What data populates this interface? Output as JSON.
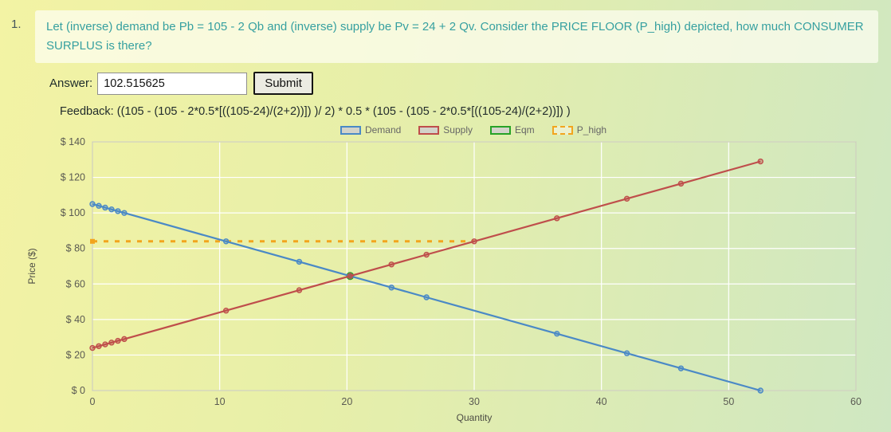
{
  "page": {
    "question_number": "1.",
    "question_text": "Let (inverse) demand be Pb = 105 - 2 Qb and (inverse) supply be Pv = 24 + 2 Qv. Consider the PRICE FLOOR (P_high) depicted, how much CONSUMER SURPLUS is there?",
    "answer": {
      "label": "Answer:",
      "value": "102.515625",
      "submit_label": "Submit"
    },
    "feedback": "Feedback: ((105 - (105 - 2*0.5*[((105-24)/(2+2))]) )/ 2) * 0.5 * (105 - (105 - 2*0.5*[((105-24)/(2+2))]) )"
  },
  "colors": {
    "demand": "#4a89c6",
    "supply": "#bf4e4b",
    "eqm": "#27a327",
    "p_high": "#f2a51e",
    "grid": "#ffffff",
    "plot_border": "#c6c6b2",
    "question_text": "#36a0a0"
  },
  "legend": [
    {
      "label": "Demand",
      "color": "#4a89c6",
      "style": "patch"
    },
    {
      "label": "Supply",
      "color": "#bf4e4b",
      "style": "patch"
    },
    {
      "label": "Eqm",
      "color": "#27a327",
      "style": "patch"
    },
    {
      "label": "P_high",
      "color": "#f2a51e",
      "style": "dashed"
    }
  ],
  "chart_data": {
    "type": "line",
    "title": "",
    "xlabel": "Quantity",
    "ylabel": "Price ($)",
    "xlim": [
      0,
      60
    ],
    "ylim": [
      0,
      140
    ],
    "x_ticks": [
      0,
      10,
      20,
      30,
      40,
      50,
      60
    ],
    "y_ticks": [
      0,
      20,
      40,
      60,
      80,
      100,
      120,
      140
    ],
    "y_tick_prefix": "$ ",
    "grid": true,
    "legend_position": "top-center",
    "equilibrium": {
      "q": 20.25,
      "p": 64.5
    },
    "price_floor": {
      "label": "P_high",
      "p": 84,
      "x_start": 0,
      "x_end": 30
    },
    "series": [
      {
        "name": "Demand",
        "color": "#4a89c6",
        "points": [
          [
            0,
            105
          ],
          [
            0.5,
            104
          ],
          [
            1,
            103
          ],
          [
            1.5,
            102
          ],
          [
            2,
            101
          ],
          [
            2.5,
            100
          ],
          [
            10.5,
            84
          ],
          [
            16.25,
            72.5
          ],
          [
            20.25,
            64.5
          ],
          [
            23.5,
            58
          ],
          [
            26.25,
            52.5
          ],
          [
            36.5,
            32
          ],
          [
            42,
            21
          ],
          [
            46.25,
            12.5
          ],
          [
            52.5,
            0
          ]
        ]
      },
      {
        "name": "Supply",
        "color": "#bf4e4b",
        "points": [
          [
            0,
            24
          ],
          [
            0.5,
            25
          ],
          [
            1,
            26
          ],
          [
            1.5,
            27
          ],
          [
            2,
            28
          ],
          [
            2.5,
            29
          ],
          [
            10.5,
            45
          ],
          [
            16.25,
            56.5
          ],
          [
            20.25,
            64.5
          ],
          [
            23.5,
            71
          ],
          [
            26.25,
            76.5
          ],
          [
            30,
            84
          ],
          [
            36.5,
            97
          ],
          [
            42,
            108
          ],
          [
            46.25,
            116.5
          ],
          [
            52.5,
            129
          ]
        ]
      }
    ]
  }
}
